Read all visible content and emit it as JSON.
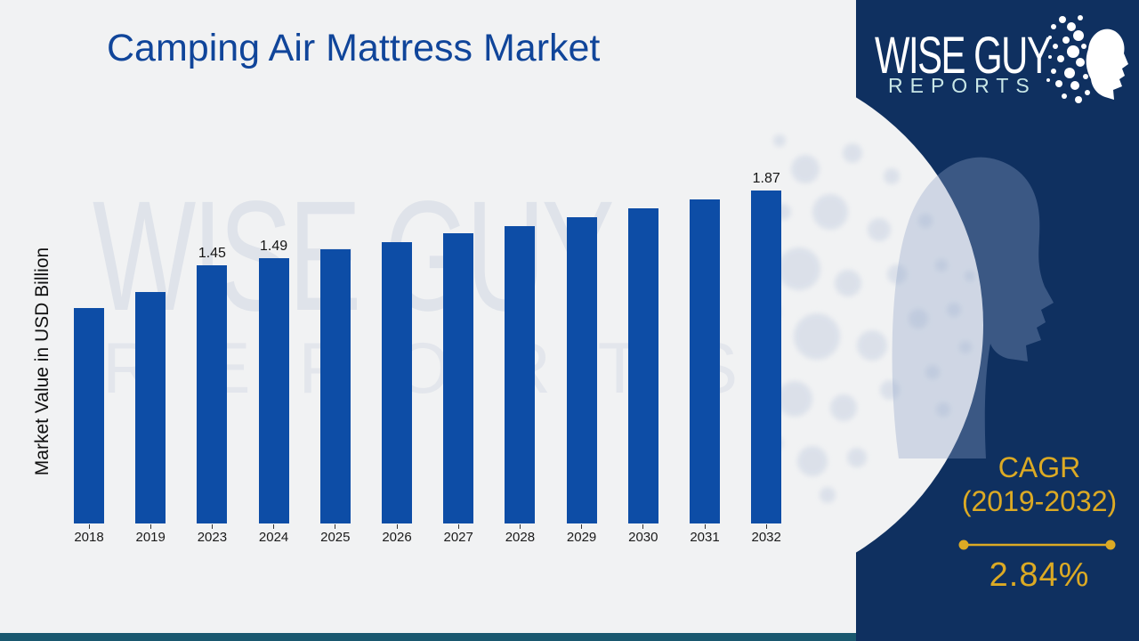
{
  "title": "Camping Air Mattress Market",
  "watermark": {
    "line1": "WISE GUY",
    "line2": "REPORTS"
  },
  "logo": {
    "line1": "WISE GUY",
    "line2": "REPORTS"
  },
  "cagr": {
    "heading": "CAGR",
    "range": "(2019-2032)",
    "value": "2.84%"
  },
  "chart_data": {
    "type": "bar",
    "title": "Camping Air Mattress Market",
    "xlabel": "",
    "ylabel": "Market Value in USD Billion",
    "categories": [
      "2018",
      "2019",
      "2023",
      "2024",
      "2025",
      "2026",
      "2027",
      "2028",
      "2029",
      "2030",
      "2031",
      "2032"
    ],
    "values": [
      1.21,
      1.3,
      1.45,
      1.49,
      1.54,
      1.58,
      1.63,
      1.67,
      1.72,
      1.77,
      1.82,
      1.87
    ],
    "bar_labels": [
      null,
      null,
      "1.45",
      "1.49",
      null,
      null,
      null,
      null,
      null,
      null,
      null,
      "1.87"
    ],
    "units": "USD Billion",
    "ylim": [
      0,
      2.2
    ],
    "grid": false,
    "legend": false
  },
  "colors": {
    "page-bg": "#f1f2f3",
    "bar": "#0d4da6",
    "navy": "#0f3060",
    "gold": "#dcaa24",
    "teal": "#19586f",
    "title-blue": "#10459a",
    "logo-subtext": "#c9e7e7",
    "watermark": "#dfe3ea"
  }
}
